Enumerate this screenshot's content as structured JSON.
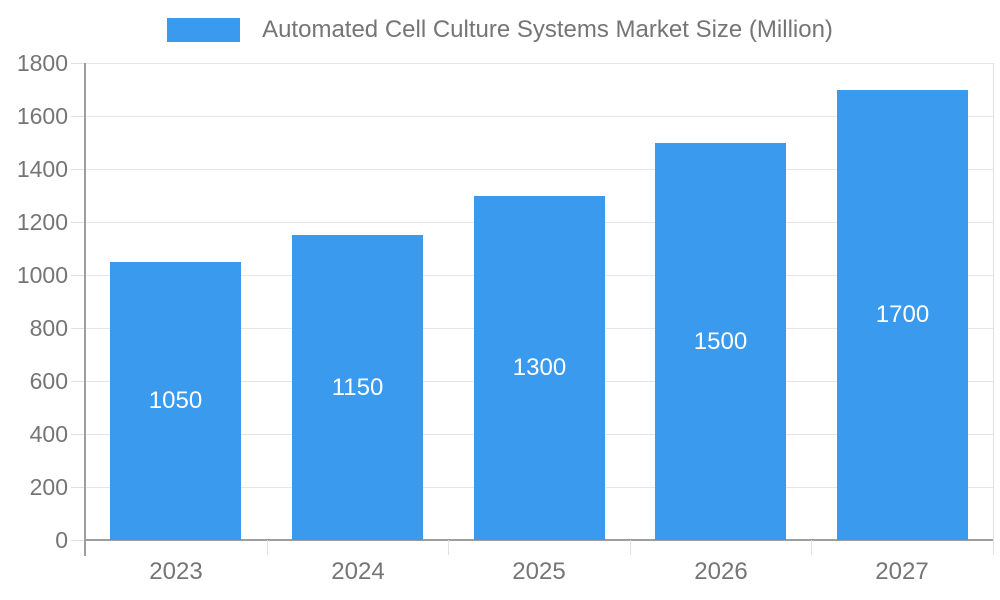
{
  "chart_data": {
    "type": "bar",
    "title": "Automated Cell Culture Systems Market Size (Million)",
    "categories": [
      "2023",
      "2024",
      "2025",
      "2026",
      "2027"
    ],
    "series": [
      {
        "name": "Automated Cell Culture Systems Market Size (Million)",
        "values": [
          1050,
          1150,
          1300,
          1500,
          1700
        ]
      }
    ],
    "xlabel": "",
    "ylabel": "",
    "ylim": [
      0,
      1800
    ],
    "ytick_step": 200,
    "ytick_labels": [
      "0",
      "200",
      "400",
      "600",
      "800",
      "1000",
      "1200",
      "1400",
      "1600",
      "1800"
    ],
    "grid": true,
    "legend_position": "top",
    "value_labels_shown": true,
    "colors": {
      "bar": "#399aee",
      "value_label": "#ffffff",
      "axis_text": "#757575",
      "gridline": "#e6e6e6",
      "axis_line": "#9e9e9e",
      "tick": "#e0e0e0"
    }
  }
}
